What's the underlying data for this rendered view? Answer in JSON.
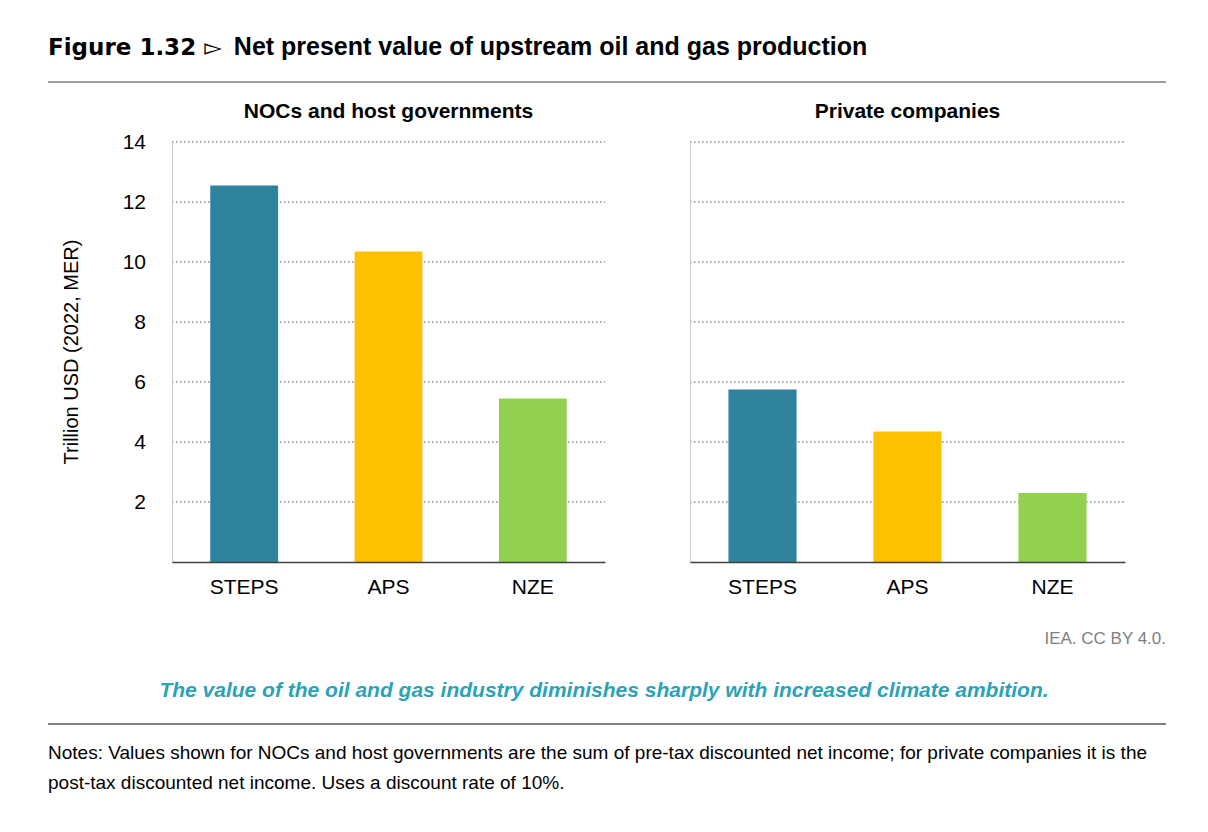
{
  "figure": {
    "label": "Figure 1.32 ▻",
    "title": "Net present value of upstream oil and gas production",
    "caption": "The value of the oil and gas industry diminishes sharply with increased climate ambition.",
    "notes": "Notes: Values shown for NOCs and host governments are the sum of pre-tax discounted net income; for private companies it is the post-tax discounted net income. Uses a discount rate of 10%.",
    "source": "IEA. CC BY 4.0."
  },
  "chart_data": [
    {
      "type": "bar",
      "title": "NOCs and host governments",
      "y_label": "Trillion USD (2022, MER)",
      "categories": [
        "STEPS",
        "APS",
        "NZE"
      ],
      "values": [
        12.55,
        10.35,
        5.45
      ],
      "colors": [
        "#2e849e",
        "#ffc000",
        "#92d050"
      ],
      "ylim": [
        0,
        14
      ],
      "yticks": [
        2,
        4,
        6,
        8,
        10,
        12,
        14
      ],
      "grid": true
    },
    {
      "type": "bar",
      "title": "Private companies",
      "categories": [
        "STEPS",
        "APS",
        "NZE"
      ],
      "values": [
        5.75,
        4.35,
        2.3
      ],
      "colors": [
        "#2e849e",
        "#ffc000",
        "#92d050"
      ],
      "ylim": [
        0,
        14
      ],
      "yticks": [
        2,
        4,
        6,
        8,
        10,
        12,
        14
      ],
      "grid": true,
      "tick_labels": "x"
    }
  ]
}
